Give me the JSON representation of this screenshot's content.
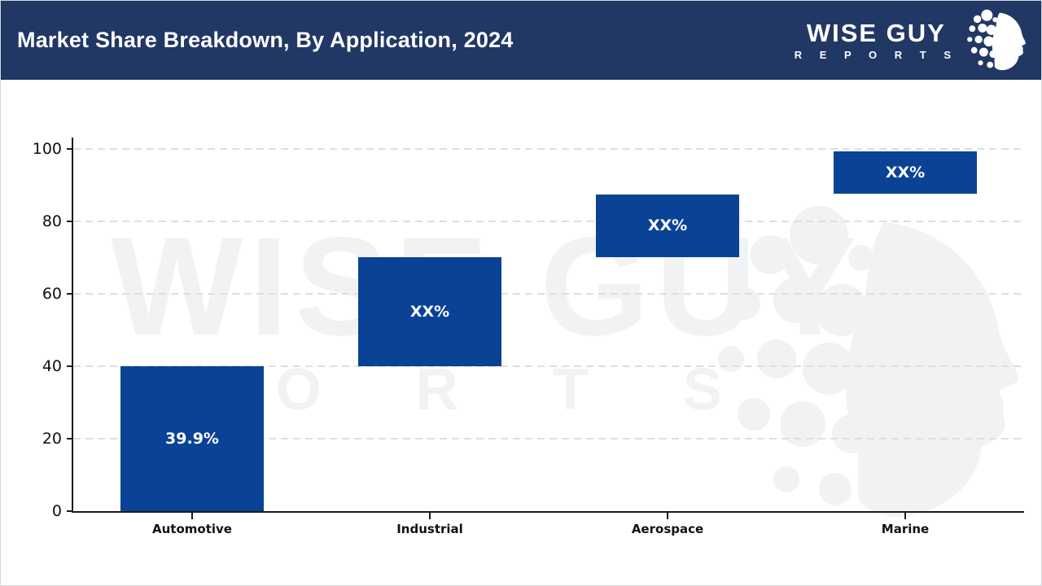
{
  "header": {
    "title": "Market Share Breakdown, By Application, 2024",
    "bg_color": "#213764",
    "logo": {
      "line1": "WISE GUY",
      "line2": "R E P O R T S",
      "face_icon": "dotted-head-profile"
    }
  },
  "watermark": {
    "line1": "WISE GUY",
    "line2": "P O R T S",
    "face_icon": "dotted-head-profile",
    "color": "#f1f2f4"
  },
  "chart_data": {
    "type": "bar",
    "subtype": "stacked-waterfall",
    "title": "Market Share Breakdown, By Application, 2024",
    "categories": [
      "Automotive",
      "Industrial",
      "Aerospace",
      "Marine"
    ],
    "segments": [
      {
        "category": "Automotive",
        "start": 0,
        "end": 39.9,
        "label": "39.9%"
      },
      {
        "category": "Industrial",
        "start": 39.9,
        "end": 70.2,
        "label": "XX%"
      },
      {
        "category": "Aerospace",
        "start": 70.2,
        "end": 87.5,
        "label": "XX%"
      },
      {
        "category": "Marine",
        "start": 87.6,
        "end": 99.3,
        "label": "XX%"
      }
    ],
    "yticks": [
      0,
      20,
      40,
      60,
      80,
      100
    ],
    "ylim": [
      0,
      103
    ],
    "xlabel": "",
    "ylabel": "",
    "legend": "none",
    "grid": {
      "show": true,
      "orientation": "horizontal",
      "style": "dashed",
      "color": "#dedede"
    },
    "bar_color": "#0a4296",
    "bar_label_color": "#ffffff",
    "axis_color": "#1a1a1a"
  },
  "colors": {
    "header_bg": "#213764",
    "bar_blue": "#0a4296",
    "watermark_gray": "#f1f2f4",
    "page_bg": "#ffffff"
  }
}
